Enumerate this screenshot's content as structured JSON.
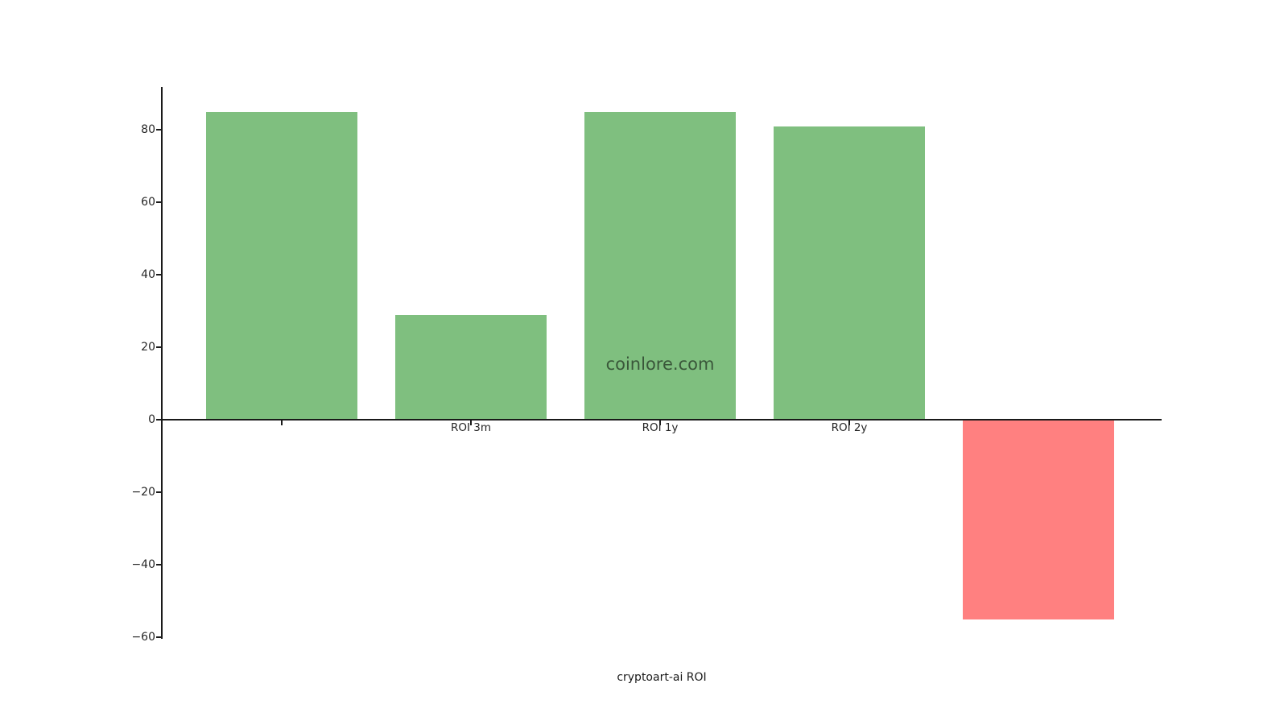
{
  "chart_data": {
    "type": "bar",
    "title": "",
    "xlabel": "cryptoart-ai ROI",
    "ylabel": "",
    "categories": [
      "",
      "ROI 3m",
      "ROI 1y",
      "ROI 2y",
      ""
    ],
    "values": [
      85,
      29,
      85,
      81,
      -55
    ],
    "yticks": [
      {
        "value": 80,
        "label": "80"
      },
      {
        "value": 60,
        "label": "60"
      },
      {
        "value": 40,
        "label": "40"
      },
      {
        "value": 20,
        "label": "20"
      },
      {
        "value": 0,
        "label": "0"
      },
      {
        "value": -20,
        "label": "−20"
      },
      {
        "value": -40,
        "label": "−40"
      },
      {
        "value": -60,
        "label": "−60"
      }
    ],
    "ylim": [
      -60.5,
      92
    ],
    "grid": false,
    "legend": "none",
    "watermark": "coinlore.com",
    "colors": {
      "positive": "#7fbf7f",
      "negative": "#ff8080",
      "axis": "#1a1a1a",
      "tick_text": "#262626",
      "watermark": "rgba(0,0,0,0.55)"
    }
  }
}
